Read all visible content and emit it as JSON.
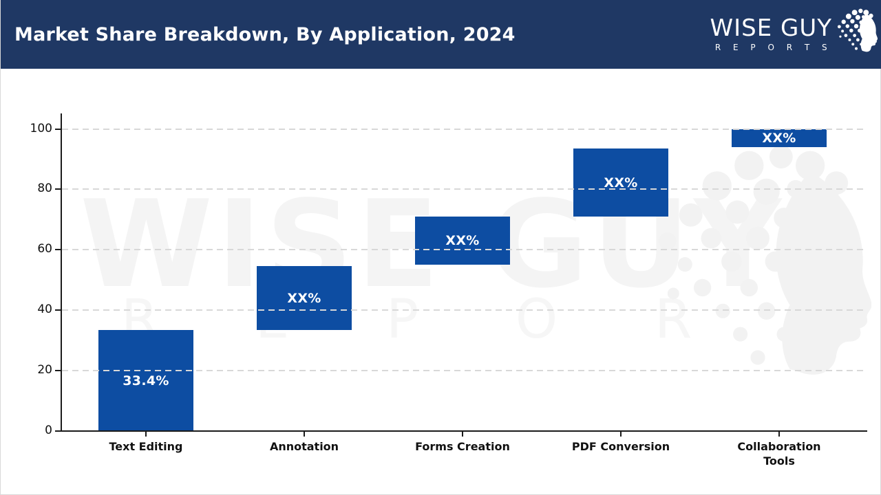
{
  "header": {
    "title": "Market Share Breakdown, By Application, 2024",
    "logo_line1": "WISE GUY",
    "logo_line2": "R E P O R T S"
  },
  "watermark": {
    "line1": "WISE GUY",
    "line2": "R E P O R T S"
  },
  "colors": {
    "header_bg": "#1f3864",
    "bar": "#0d4da2",
    "grid": "#d8d8d8",
    "axis": "#1a1a1a",
    "watermark": "#f4f4f4"
  },
  "chart_data": {
    "type": "bar",
    "subtype": "waterfall",
    "title": "Market Share Breakdown, By Application, 2024",
    "categories": [
      "Text Editing",
      "Annotation",
      "Forms Creation",
      "PDF Conversion",
      "Collaboration Tools"
    ],
    "segments": [
      {
        "category": "Text Editing",
        "start": 0,
        "end": 33.4,
        "label": "33.4%"
      },
      {
        "category": "Annotation",
        "start": 33.4,
        "end": 54.5,
        "label": "XX%"
      },
      {
        "category": "Forms Creation",
        "start": 55,
        "end": 71,
        "label": "XX%"
      },
      {
        "category": "PDF Conversion",
        "start": 71,
        "end": 93.5,
        "label": "XX%"
      },
      {
        "category": "Collaboration Tools",
        "start": 94,
        "end": 100,
        "label": "XX%"
      }
    ],
    "xlabel": "",
    "ylabel": "",
    "yticks": [
      0,
      20,
      40,
      60,
      80,
      100
    ],
    "ylim": [
      0,
      105
    ],
    "grid": "horizontal-dashed",
    "legend": null
  }
}
